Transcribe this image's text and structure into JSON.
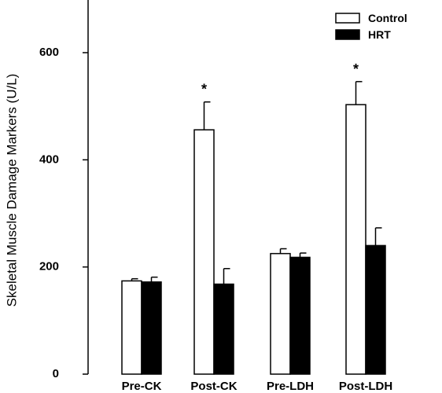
{
  "chart_data": {
    "type": "bar",
    "ylabel": "Skeletal Muscle Damage Markers (U/L)",
    "ylim": [
      0,
      700
    ],
    "yticks": [
      0,
      200,
      400,
      600
    ],
    "categories": [
      "Pre-CK",
      "Post-CK",
      "Pre-LDH",
      "Post-LDH"
    ],
    "series": [
      {
        "name": "Control",
        "color": "#ffffff",
        "values": [
          174,
          456,
          225,
          503
        ],
        "errors": [
          4,
          52,
          9,
          43
        ]
      },
      {
        "name": "HRT",
        "color": "#000000",
        "values": [
          172,
          168,
          218,
          240
        ],
        "errors": [
          9,
          29,
          8,
          33
        ]
      }
    ],
    "significance": [
      {
        "category": "Post-CK",
        "series": "Control",
        "marker": "*"
      },
      {
        "category": "Post-LDH",
        "series": "Control",
        "marker": "*"
      }
    ],
    "legend_position": "top-right"
  }
}
